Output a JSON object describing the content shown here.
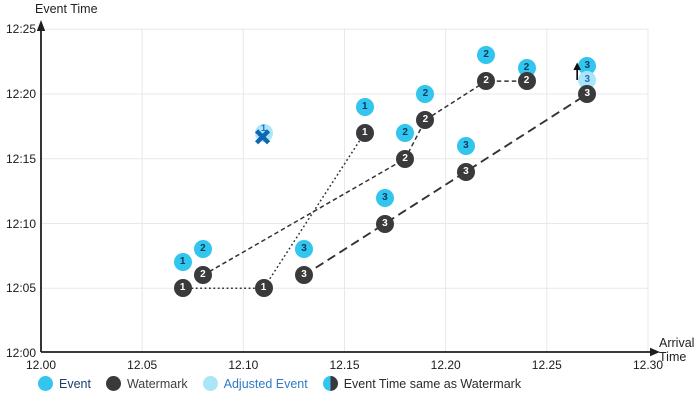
{
  "axes": {
    "y_title": "Event Time",
    "x_title_lines": [
      "Arrival",
      "Time"
    ]
  },
  "legend": {
    "items": [
      {
        "id": "event",
        "label": "Event"
      },
      {
        "id": "watermark",
        "label": "Watermark"
      },
      {
        "id": "adjusted",
        "label": "Adjusted Event"
      },
      {
        "id": "same",
        "label": "Event Time same as Watermark"
      }
    ]
  },
  "colors": {
    "event": "#32c5ee",
    "event_number": "#0d3a5e",
    "watermark": "#3a3a3c",
    "watermark_number": "#ffffff",
    "adjusted": "#aae6f8",
    "adjusted_number": "#1e6fc0",
    "x_mark": "#1166b0",
    "axis": "#1f1f1f",
    "grid": "#e8e8e8",
    "line": "#333333"
  },
  "chart_data": {
    "type": "scatter",
    "title": "",
    "xlabel": "Arrival Time",
    "ylabel": "Event Time",
    "grid": true,
    "legend_position": "bottom",
    "x_axis": {
      "tick_labels": [
        "12.00",
        "12.05",
        "12.10",
        "12.15",
        "12.20",
        "12.25",
        "12.30"
      ],
      "tick_values": [
        12.0,
        12.05,
        12.1,
        12.15,
        12.2,
        12.25,
        12.3
      ],
      "range": [
        12.0,
        12.3
      ]
    },
    "y_axis": {
      "tick_labels": [
        "12:00",
        "12:05",
        "12:10",
        "12:15",
        "12:20",
        "12:25"
      ],
      "tick_minutes": [
        0,
        5,
        10,
        15,
        20,
        25
      ],
      "range_minutes_after_12": [
        0,
        25
      ]
    },
    "events": [
      {
        "stream": 1,
        "arrival": 12.07,
        "event_time": "12:07",
        "minutes": 7
      },
      {
        "stream": 1,
        "arrival": 12.16,
        "event_time": "12:19",
        "minutes": 19
      },
      {
        "stream": 2,
        "arrival": 12.08,
        "event_time": "12:08",
        "minutes": 8
      },
      {
        "stream": 2,
        "arrival": 12.18,
        "event_time": "12:17",
        "minutes": 17
      },
      {
        "stream": 2,
        "arrival": 12.19,
        "event_time": "12:20",
        "minutes": 20
      },
      {
        "stream": 2,
        "arrival": 12.22,
        "event_time": "12:23",
        "minutes": 23
      },
      {
        "stream": 2,
        "arrival": 12.24,
        "event_time": "12:22",
        "minutes": 22
      },
      {
        "stream": 3,
        "arrival": 12.13,
        "event_time": "12:08",
        "minutes": 8
      },
      {
        "stream": 3,
        "arrival": 12.17,
        "event_time": "12:12",
        "minutes": 12
      },
      {
        "stream": 3,
        "arrival": 12.21,
        "event_time": "12:16",
        "minutes": 16
      },
      {
        "stream": 3,
        "arrival": 12.27,
        "event_time": "12:22",
        "minutes": 22.2
      }
    ],
    "watermark_lines": [
      {
        "stream": 1,
        "dash": "dotted",
        "points": [
          {
            "arrival": 12.07,
            "watermark": "12:05",
            "minutes": 5
          },
          {
            "arrival": 12.11,
            "watermark": "12:05",
            "minutes": 5
          },
          {
            "arrival": 12.16,
            "watermark": "12:17",
            "minutes": 17
          }
        ]
      },
      {
        "stream": 2,
        "dash": "dashed",
        "points": [
          {
            "arrival": 12.08,
            "watermark": "12:06",
            "minutes": 6
          },
          {
            "arrival": 12.18,
            "watermark": "12:15",
            "minutes": 15
          },
          {
            "arrival": 12.19,
            "watermark": "12:18",
            "minutes": 18
          },
          {
            "arrival": 12.22,
            "watermark": "12:21",
            "minutes": 21
          },
          {
            "arrival": 12.24,
            "watermark": "12:21",
            "minutes": 21
          }
        ]
      },
      {
        "stream": 3,
        "dash": "long-dash",
        "points": [
          {
            "arrival": 12.13,
            "watermark": "12:06",
            "minutes": 6
          },
          {
            "arrival": 12.17,
            "watermark": "12:10",
            "minutes": 10
          },
          {
            "arrival": 12.21,
            "watermark": "12:14",
            "minutes": 14
          },
          {
            "arrival": 12.27,
            "watermark": "12:20",
            "minutes": 20
          }
        ]
      }
    ],
    "adjusted_events": [
      {
        "stream": 1,
        "arrival": 12.11,
        "event_time": "12:17",
        "minutes": 17,
        "status": "dropped"
      },
      {
        "stream": 3,
        "arrival": 12.27,
        "event_time": "12:21",
        "minutes": 21.1,
        "status": "adjusted"
      }
    ],
    "annotations": [
      {
        "type": "up-arrow",
        "arrival": 12.265,
        "minutes": 21.7
      }
    ]
  }
}
